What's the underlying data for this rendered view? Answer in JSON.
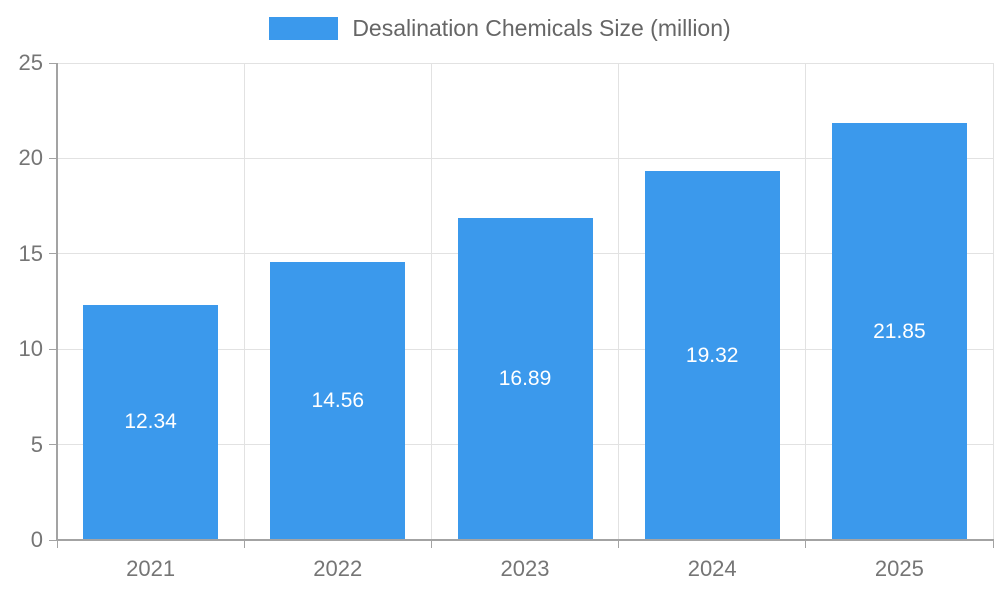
{
  "legend": {
    "label": "Desalination Chemicals Size (million)"
  },
  "chart_data": {
    "type": "bar",
    "title": "",
    "categories": [
      "2021",
      "2022",
      "2023",
      "2024",
      "2025"
    ],
    "series": [
      {
        "name": "Desalination Chemicals Size (million)",
        "values": [
          12.34,
          14.56,
          16.89,
          19.32,
          21.85
        ]
      }
    ],
    "xlabel": "",
    "ylabel": "",
    "ylim": [
      0,
      25
    ],
    "yticks": [
      0,
      5,
      10,
      15,
      20,
      25
    ],
    "grid": true,
    "legend_position": "top-center",
    "value_labels_shown": true,
    "value_label_decimals": 2,
    "style": {
      "bar_color": "#3b99ec",
      "value_label_color": "#ffffff",
      "axis_color": "#a3a3a3",
      "grid_color": "#e2e2e2",
      "tick_label_color": "#757575",
      "legend_text_color": "#666666",
      "background_color": "#ffffff"
    }
  }
}
